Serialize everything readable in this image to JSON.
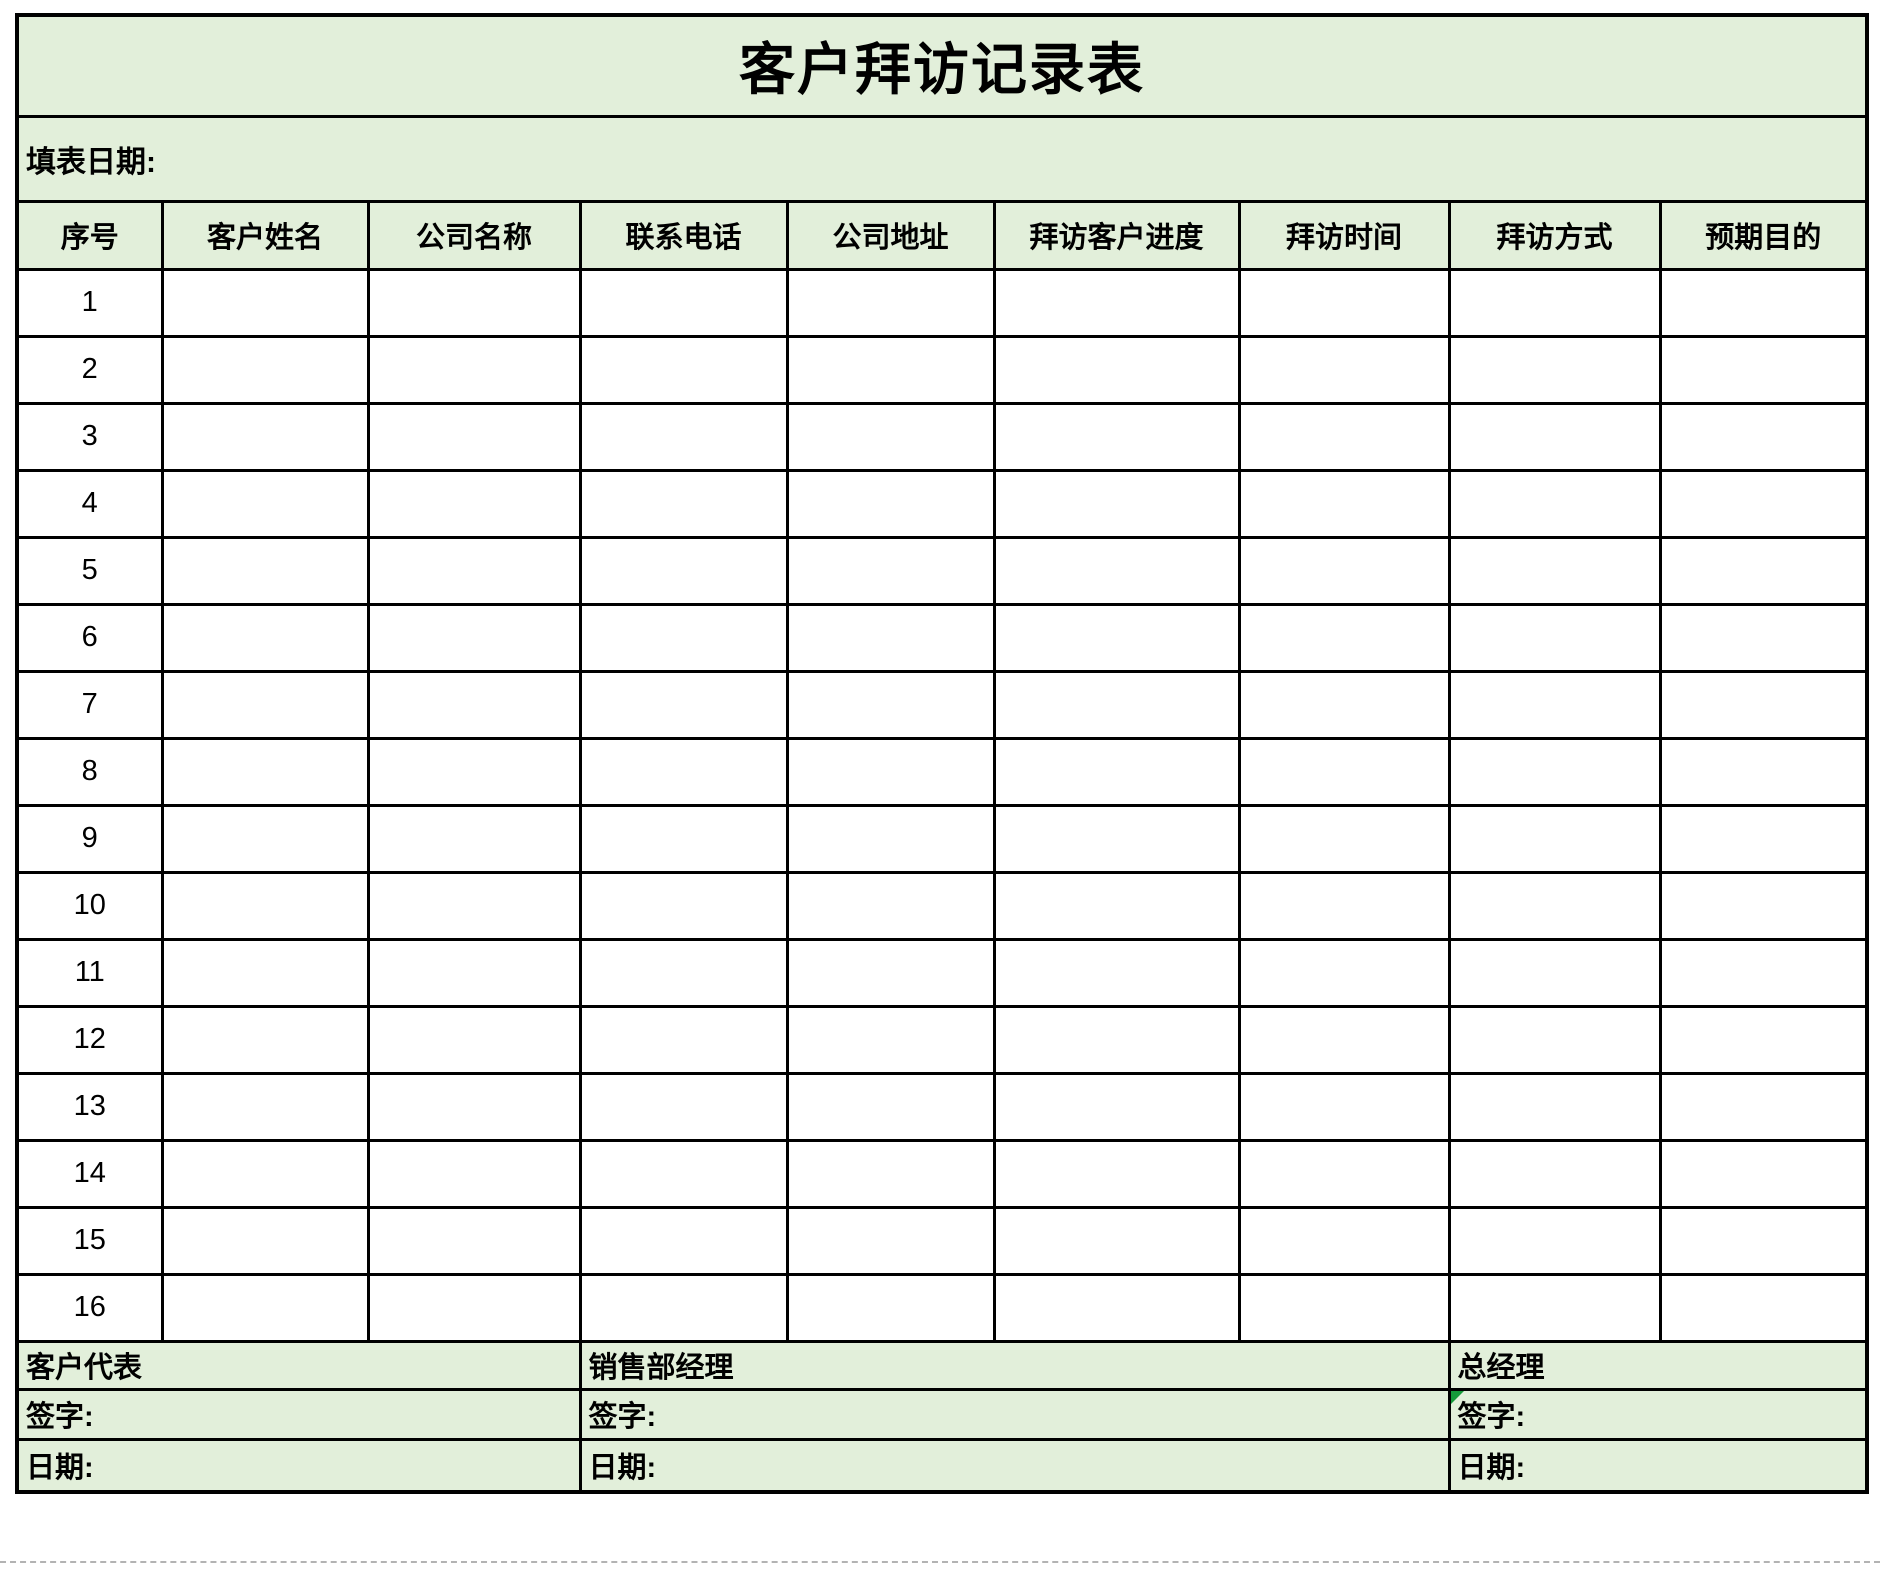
{
  "title": "客户拜访记录表",
  "date_row": {
    "label": "填表日期:"
  },
  "table": {
    "columns": [
      "序号",
      "客户姓名",
      "公司名称",
      "联系电话",
      "公司地址",
      "拜访客户进度",
      "拜访时间",
      "拜访方式",
      "预期目的"
    ],
    "row_numbers": [
      "1",
      "2",
      "3",
      "4",
      "5",
      "6",
      "7",
      "8",
      "9",
      "10",
      "11",
      "12",
      "13",
      "14",
      "15",
      "16"
    ],
    "data_columns_per_row": 8,
    "cell_values_empty": ""
  },
  "footer": {
    "sections": [
      {
        "role": "客户代表",
        "signature_label": "签字:",
        "date_label": "日期:"
      },
      {
        "role": "销售部经理",
        "signature_label": "签字:",
        "date_label": "日期:"
      },
      {
        "role": "总经理",
        "signature_label": "签字:",
        "date_label": "日期:"
      }
    ],
    "indicator": "green-corner-triangle-on-general-manager-signature-cell"
  },
  "colors": {
    "band_green": "#e2efda",
    "cell_white": "#ffffff",
    "border_black": "#000000",
    "indicator_green": "#169a3a",
    "page_break_gray": "#b3b3b3"
  }
}
